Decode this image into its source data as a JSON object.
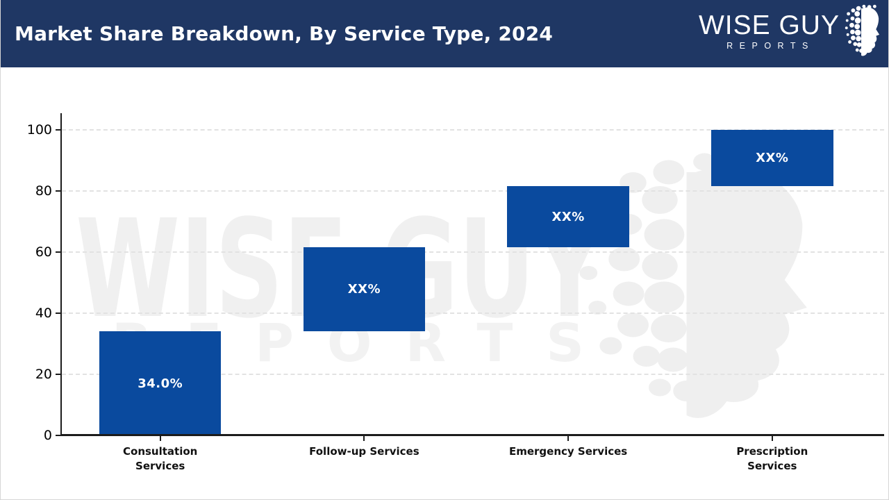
{
  "header": {
    "title": "Market Share Breakdown, By Service Type, 2024",
    "brand_name": "WISE GUY",
    "brand_sub": "REPORTS"
  },
  "watermark": {
    "wordmark": "WISE GUY",
    "sub": "REPORTS"
  },
  "colors": {
    "header_bg": "#1f3764",
    "bar": "#0a4a9e",
    "grid": "#e2e2e2",
    "axis": "#1c1c1c",
    "bar_label": "#ffffff",
    "watermark": "#f0f0f0"
  },
  "chart_data": {
    "type": "bar",
    "variant": "waterfall",
    "title": "Market Share Breakdown, By Service Type, 2024",
    "xlabel": "",
    "ylabel": "",
    "ylim": [
      0,
      100
    ],
    "yticks": [
      0,
      20,
      40,
      60,
      80,
      100
    ],
    "grid": "horizontal-dashed",
    "legend": "none",
    "bar_color": "#0a4a9e",
    "segments": [
      {
        "category": "Consultation Services",
        "category_lines": [
          "Consultation",
          "Services"
        ],
        "start": 0,
        "end": 34.0,
        "value": 34.0,
        "value_label": "34.0%"
      },
      {
        "category": "Follow-up Services",
        "category_lines": [
          "Follow-up Services"
        ],
        "start": 34.0,
        "end": 61.5,
        "value": 27.5,
        "value_label": "XX%"
      },
      {
        "category": "Emergency Services",
        "category_lines": [
          "Emergency Services"
        ],
        "start": 61.5,
        "end": 81.6,
        "value": 20.1,
        "value_label": "XX%"
      },
      {
        "category": "Prescription Services",
        "category_lines": [
          "Prescription",
          "Services"
        ],
        "start": 81.6,
        "end": 100.0,
        "value": 18.4,
        "value_label": "XX%"
      }
    ]
  }
}
